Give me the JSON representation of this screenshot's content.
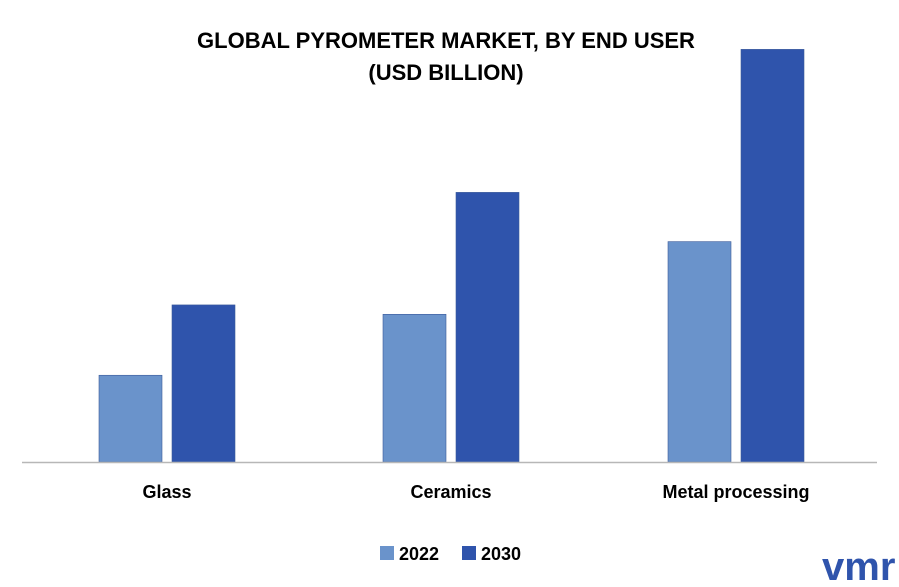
{
  "chart_data": {
    "type": "bar",
    "title_line1": "GLOBAL PYROMETER MARKET, BY END USER",
    "title_line2": "(USD BILLION)",
    "categories": [
      "Glass",
      "Ceramics",
      "Metal processing"
    ],
    "series": [
      {
        "name": "2022",
        "values": [
          0.74,
          1.26,
          1.88
        ],
        "color": "#6a93cb"
      },
      {
        "name": "2030",
        "values": [
          1.34,
          2.3,
          3.52
        ],
        "color": "#2f54ac"
      }
    ],
    "ylim": [
      0,
      3.6
    ],
    "grid": false,
    "legend_position": "bottom-center"
  },
  "logo": {
    "text": "vmr",
    "color": "#2f54ac"
  }
}
